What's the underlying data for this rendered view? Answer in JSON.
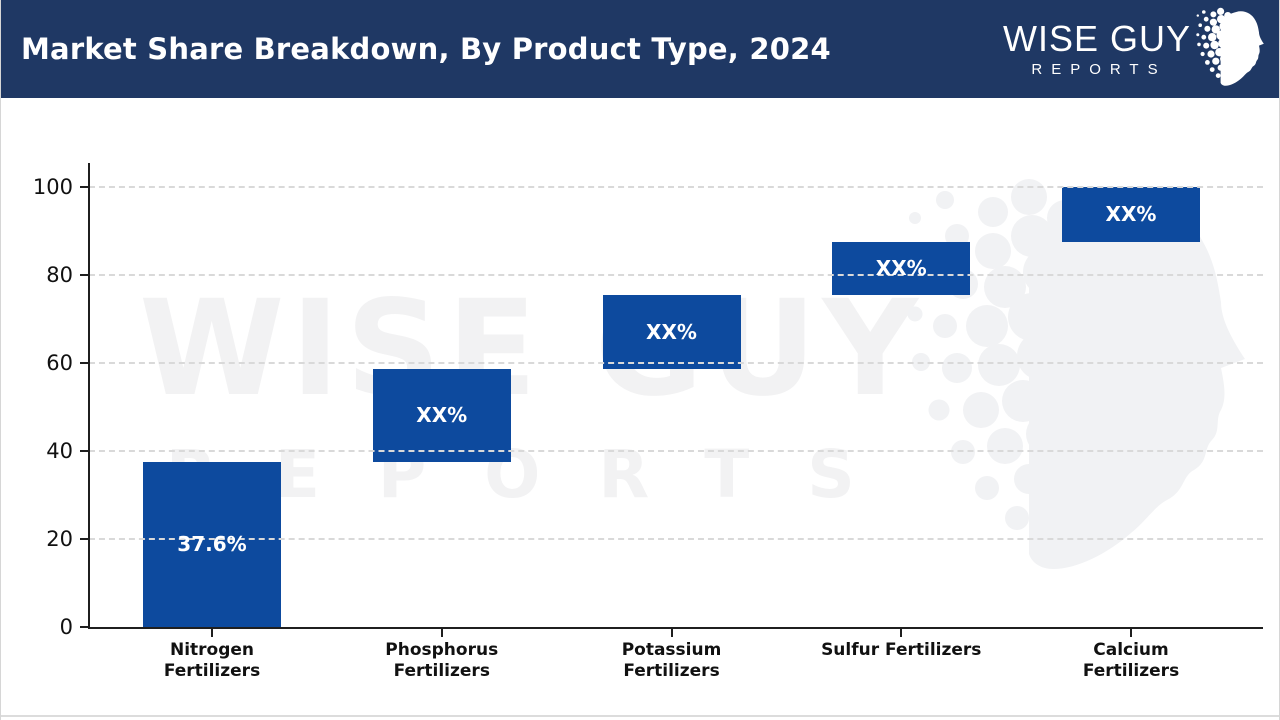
{
  "header": {
    "background": "#1f3864",
    "title": "Market Share Breakdown, By Product Type, 2024",
    "logo": {
      "line1": "WISE GUY",
      "line2": "REPORTS"
    }
  },
  "watermark": {
    "line1": "WISE GUY",
    "line2": "REPORTS"
  },
  "chart_data": {
    "type": "bar",
    "subtype": "waterfall",
    "title": "Market Share Breakdown, By Product Type, 2024",
    "categories": [
      "Nitrogen Fertilizers",
      "Phosphorus Fertilizers",
      "Potassium Fertilizers",
      "Sulfur Fertilizers",
      "Calcium Fertilizers"
    ],
    "category_lines": [
      [
        "Nitrogen",
        "Fertilizers"
      ],
      [
        "Phosphorus",
        "Fertilizers"
      ],
      [
        "Potassium",
        "Fertilizers"
      ],
      [
        "Sulfur Fertilizers"
      ],
      [
        "Calcium",
        "Fertilizers"
      ]
    ],
    "bars": [
      {
        "category": "Nitrogen Fertilizers",
        "start": 0,
        "end": 37.6,
        "label": "37.6%"
      },
      {
        "category": "Phosphorus Fertilizers",
        "start": 37.6,
        "end": 58.6,
        "label": "XX%"
      },
      {
        "category": "Potassium Fertilizers",
        "start": 58.6,
        "end": 75.5,
        "label": "XX%"
      },
      {
        "category": "Sulfur Fertilizers",
        "start": 75.5,
        "end": 87.6,
        "label": "XX%"
      },
      {
        "category": "Calcium Fertilizers",
        "start": 87.6,
        "end": 100,
        "label": "XX%"
      }
    ],
    "yticks": [
      0,
      20,
      40,
      60,
      80,
      100
    ],
    "ylim": [
      0,
      100
    ],
    "xlabel": "",
    "ylabel": "",
    "grid": "horizontal-dashed",
    "legend": "none",
    "bar_color": "#0d4a9e",
    "bar_label_color": "#ffffff",
    "gridline_color": "#d9d9d9",
    "axis_color": "#1f1f1f",
    "tick_label_color": "#111111",
    "category_label_color": "#111111"
  }
}
